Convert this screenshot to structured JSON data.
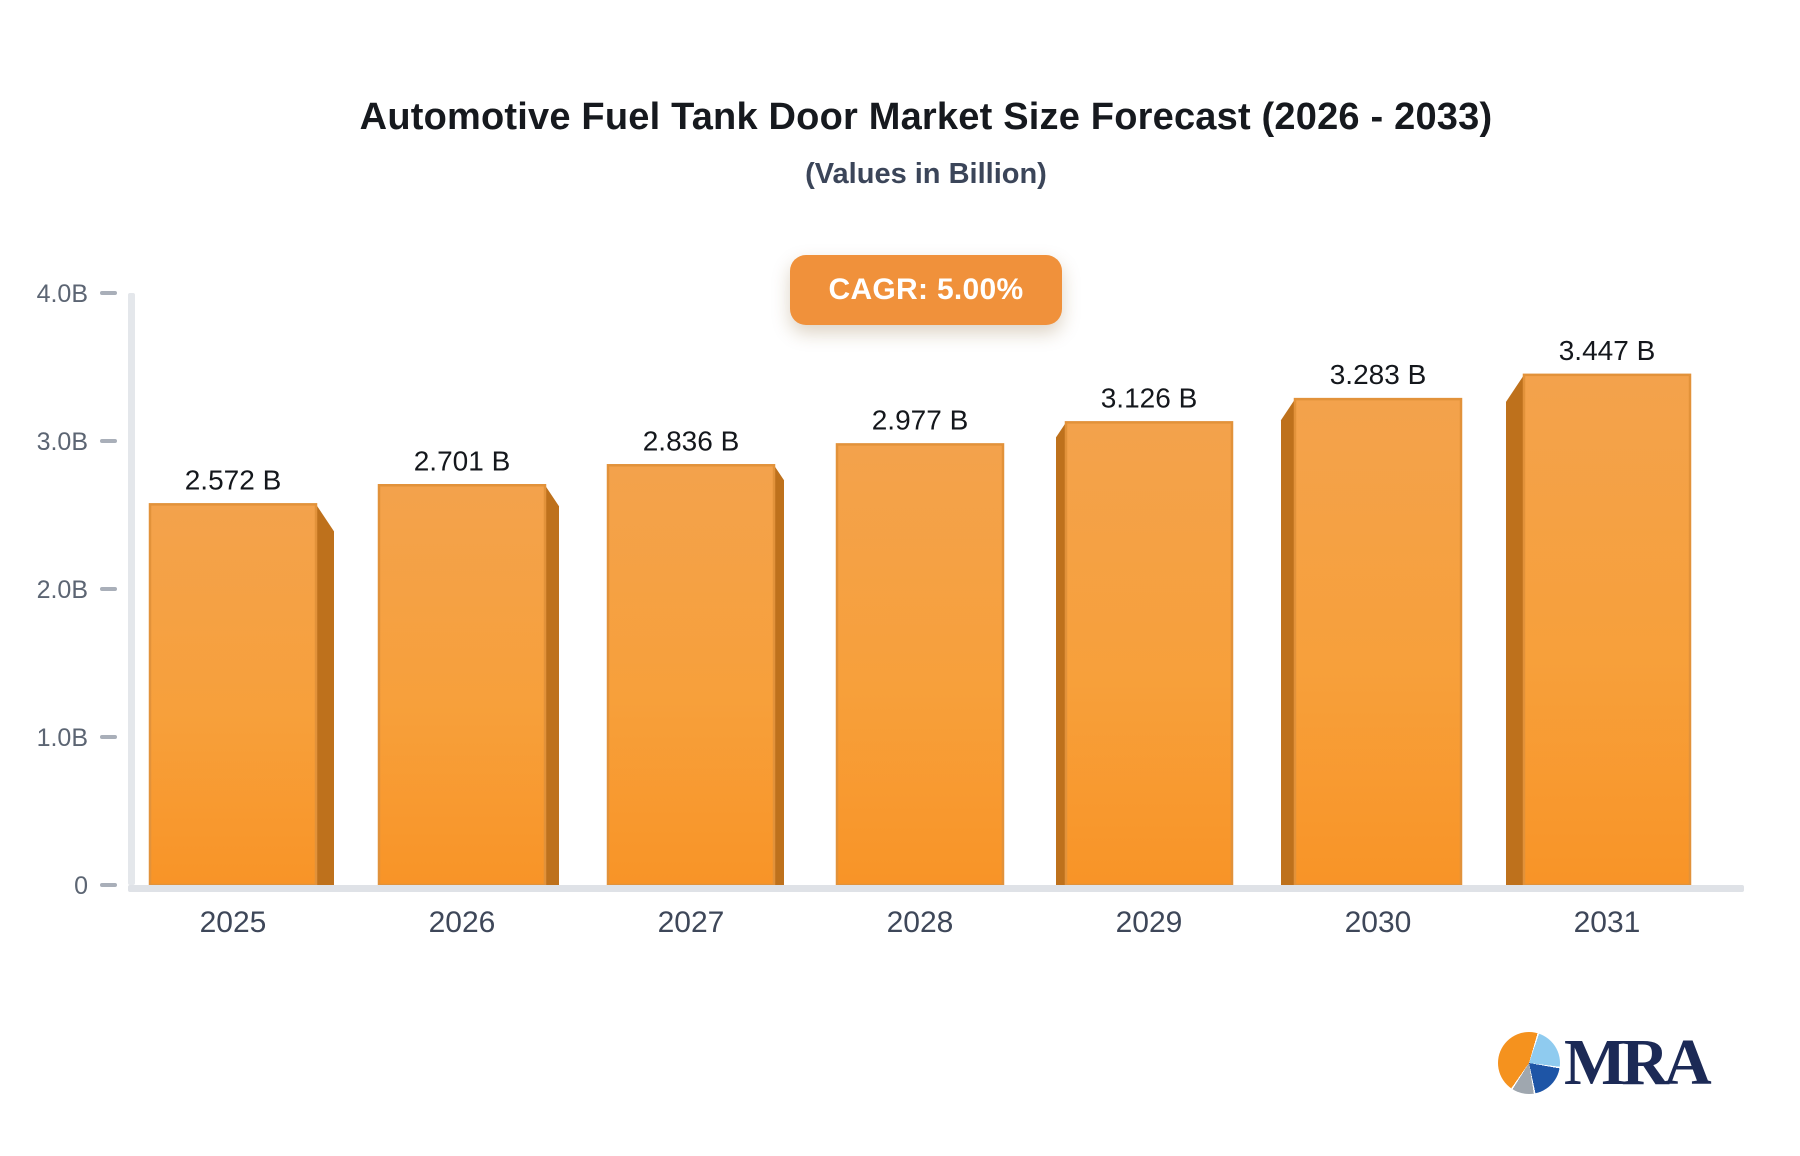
{
  "header": {
    "title": "Automotive Fuel Tank Door Market Size Forecast (2026 - 2033)",
    "subtitle": "(Values in Billion)"
  },
  "badge": {
    "label": "CAGR: 5.00%",
    "color": "#F0913B",
    "text_color": "#FFFFFF"
  },
  "chart_data": {
    "type": "bar",
    "title": "Automotive Fuel Tank Door Market Size Forecast (2026 - 2033)",
    "subtitle": "(Values in Billion)",
    "cagr": "CAGR: 5.00%",
    "categories": [
      "2025",
      "2026",
      "2027",
      "2028",
      "2029",
      "2030",
      "2031"
    ],
    "values": [
      2.572,
      2.701,
      2.836,
      2.977,
      3.126,
      3.283,
      3.447
    ],
    "value_labels": [
      "2.572 B",
      "2.701 B",
      "2.836 B",
      "2.977 B",
      "3.126 B",
      "3.283 B",
      "3.447 B"
    ],
    "unit": "Billion",
    "xlabel": "",
    "ylabel": "",
    "ylim": [
      0,
      4
    ],
    "yticks": {
      "values": [
        0,
        1,
        2,
        3,
        4
      ],
      "labels": [
        "0",
        "1.0B",
        "2.0B",
        "3.0B",
        "4.0B"
      ]
    },
    "grid": false,
    "legend_position": "none",
    "colors": {
      "bar_gradient_top": "#F3A24C",
      "bar_gradient_mid": "#F7A03B",
      "bar_gradient_bottom": "#F89427",
      "bar_side": "#BE711C",
      "bar_edge": "#E2923A",
      "axis_line": "#E4E7EB",
      "baseline": "#DFE2E7",
      "tick_dash": "#A9AFB9"
    }
  },
  "logo": {
    "text": "MRA"
  }
}
